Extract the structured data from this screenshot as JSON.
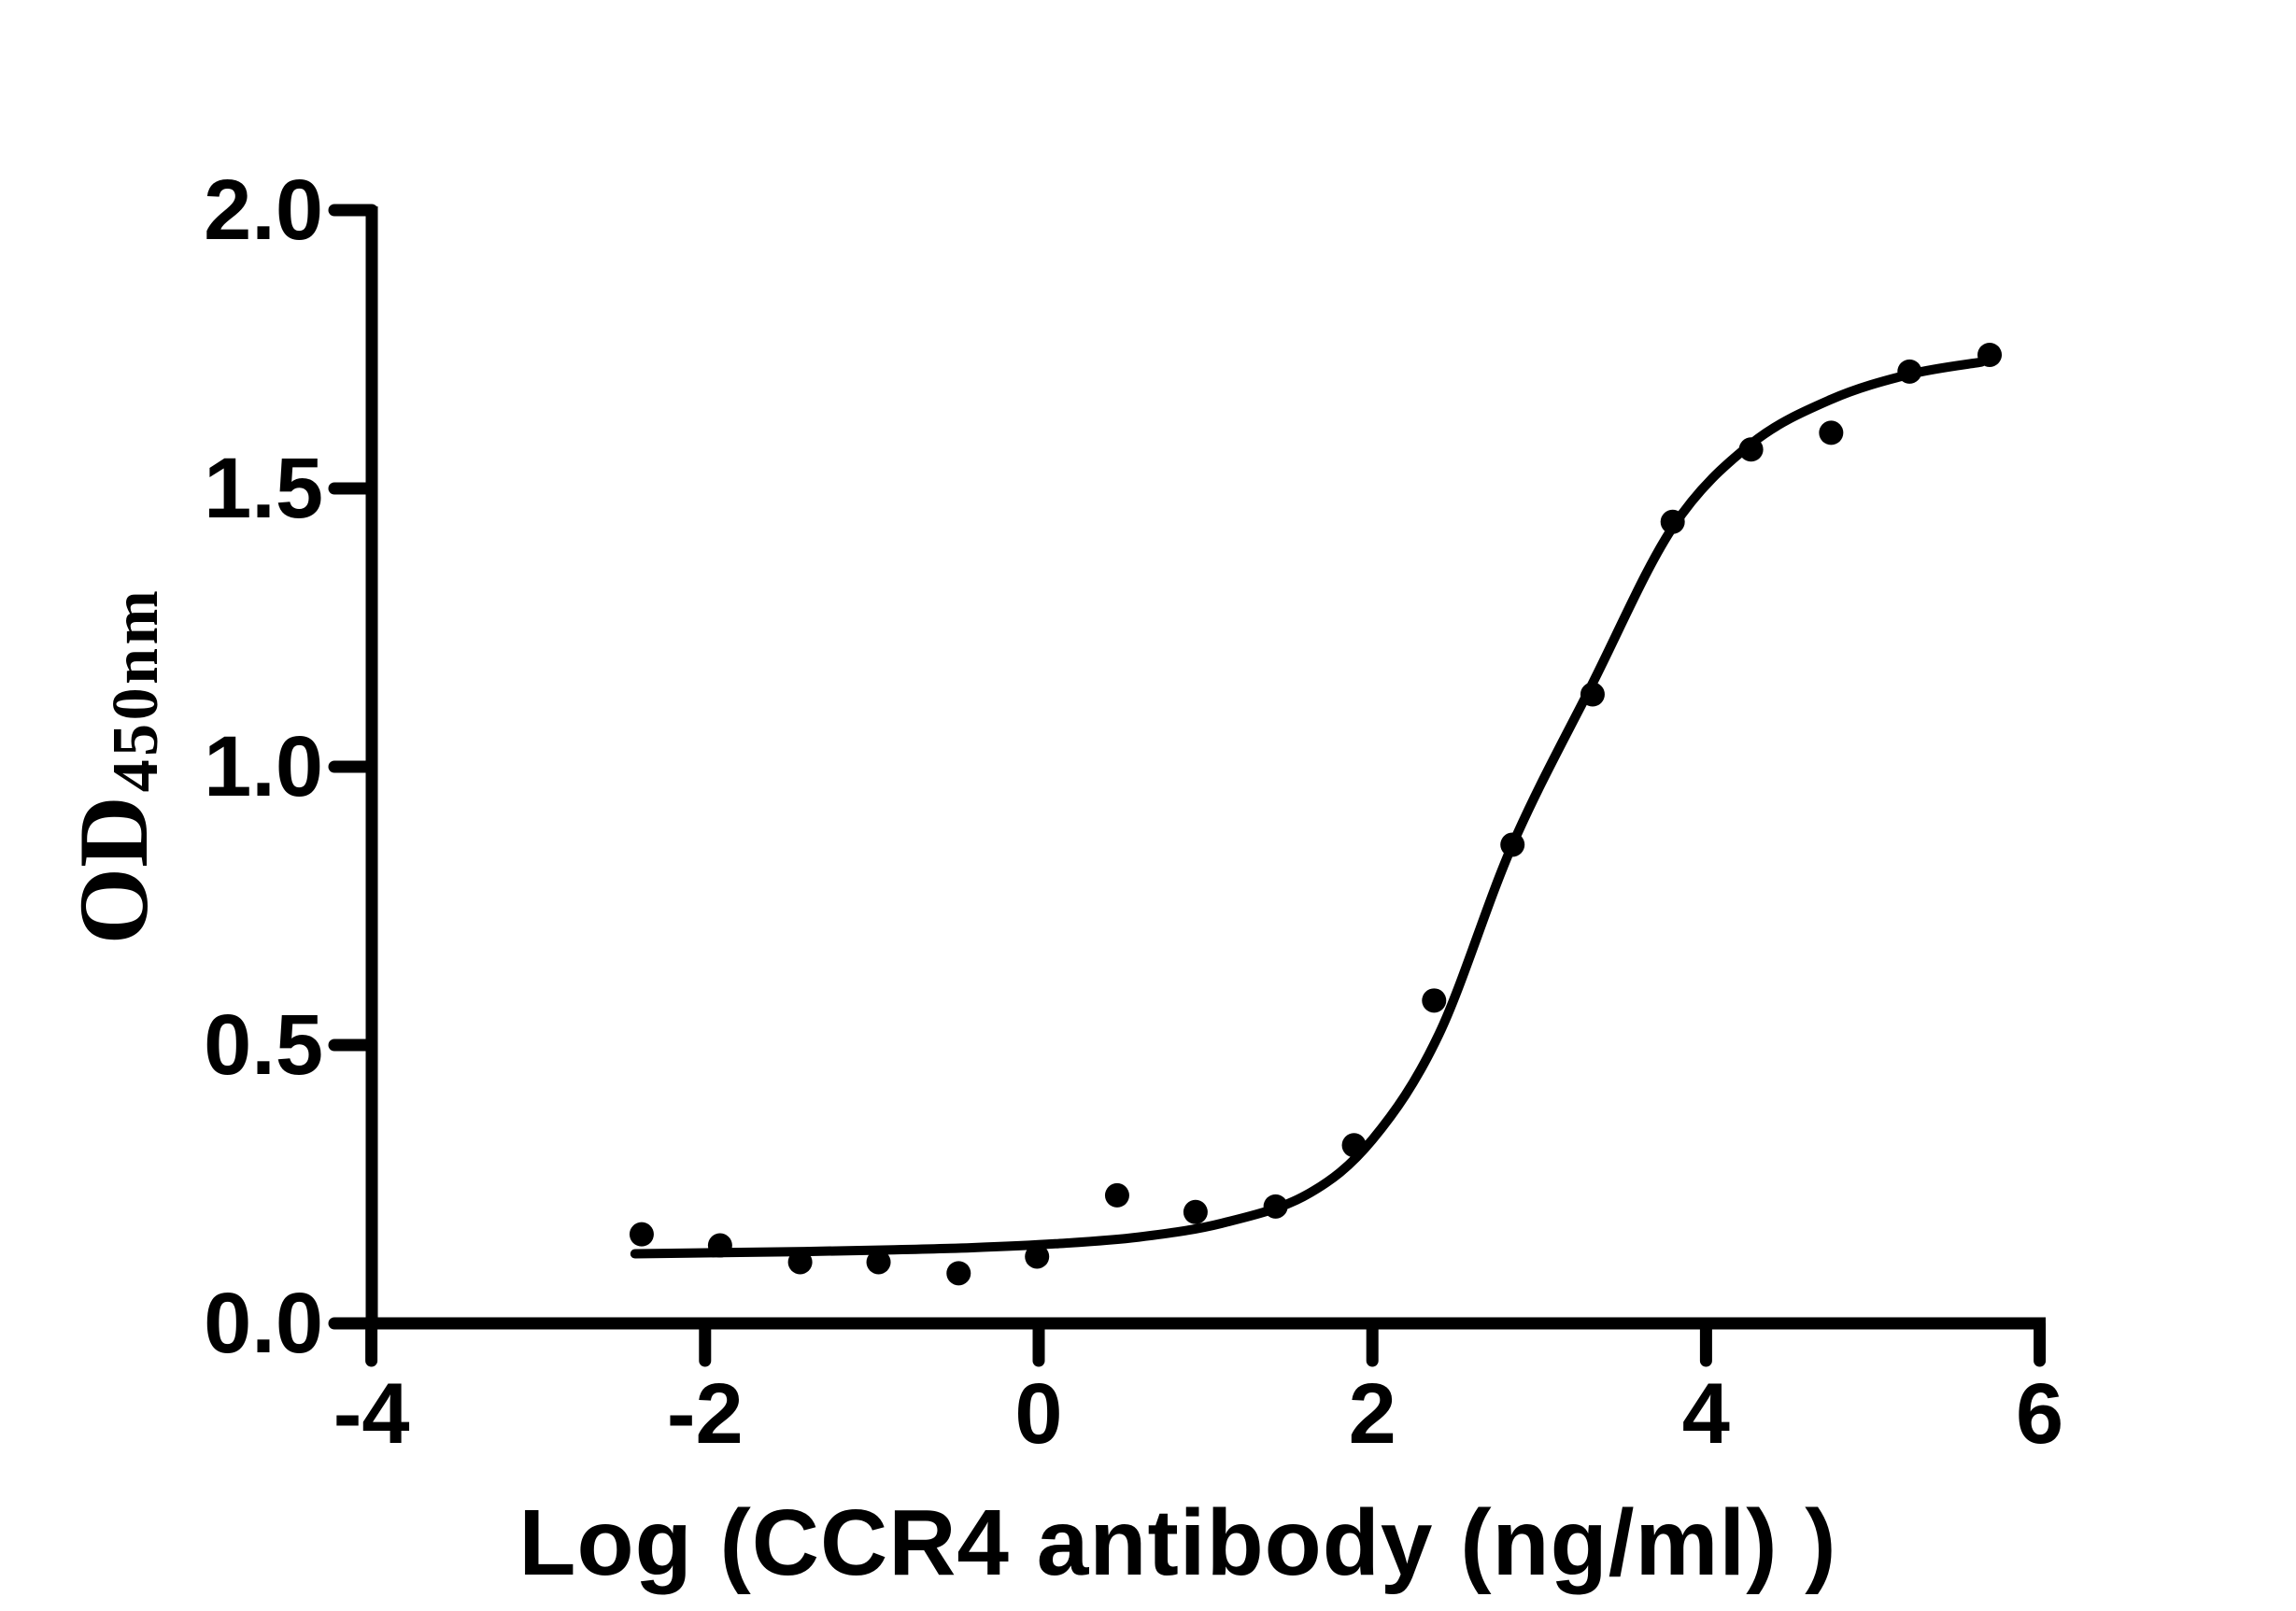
{
  "figure": {
    "background_color": "#ffffff",
    "ink_color": "#000000"
  },
  "chart_data": {
    "type": "scatter",
    "title": "",
    "xlabel": "Log (CCR4 antibody (ng/ml) )",
    "ylabel": "OD",
    "ylabel_subscript": "450nm",
    "xlim": [
      -4,
      6
    ],
    "ylim": [
      0,
      2
    ],
    "x_ticks": [
      -4,
      -2,
      0,
      2,
      4,
      6
    ],
    "x_tick_labels": [
      "-4",
      "-2",
      "0",
      "2",
      "4",
      "6"
    ],
    "y_ticks": [
      0,
      0.5,
      1,
      1.5,
      2
    ],
    "y_tick_labels": [
      "0.0",
      "0.5",
      "1.0",
      "1.5",
      "2.0"
    ],
    "grid": false,
    "legend": null,
    "marker_color": "#000000",
    "curve_color": "#000000",
    "series": [
      {
        "name": "measured-points",
        "type": "scatter",
        "marker": "filled-circle",
        "points": [
          [
            -2.38,
            0.16
          ],
          [
            -1.91,
            0.14
          ],
          [
            -1.43,
            0.11
          ],
          [
            -0.96,
            0.11
          ],
          [
            -0.48,
            0.09
          ],
          [
            -0.01,
            0.12
          ],
          [
            0.47,
            0.23
          ],
          [
            0.94,
            0.2
          ],
          [
            1.42,
            0.21
          ],
          [
            1.89,
            0.32
          ],
          [
            2.37,
            0.58
          ],
          [
            2.84,
            0.86
          ],
          [
            3.32,
            1.13
          ],
          [
            3.8,
            1.44
          ],
          [
            4.27,
            1.57
          ],
          [
            4.75,
            1.6
          ],
          [
            5.22,
            1.71
          ],
          [
            5.7,
            1.74
          ]
        ]
      },
      {
        "name": "fit-curve",
        "type": "line",
        "points": [
          [
            -2.42,
            0.125
          ],
          [
            -1.9,
            0.127
          ],
          [
            -1.4,
            0.129
          ],
          [
            -0.9,
            0.132
          ],
          [
            -0.4,
            0.136
          ],
          [
            0.1,
            0.143
          ],
          [
            0.6,
            0.155
          ],
          [
            1.1,
            0.18
          ],
          [
            1.6,
            0.23
          ],
          [
            2.0,
            0.33
          ],
          [
            2.4,
            0.52
          ],
          [
            2.84,
            0.86
          ],
          [
            3.32,
            1.15
          ],
          [
            3.8,
            1.43
          ],
          [
            4.27,
            1.58
          ],
          [
            4.75,
            1.66
          ],
          [
            5.22,
            1.705
          ],
          [
            5.65,
            1.727
          ]
        ]
      }
    ]
  }
}
